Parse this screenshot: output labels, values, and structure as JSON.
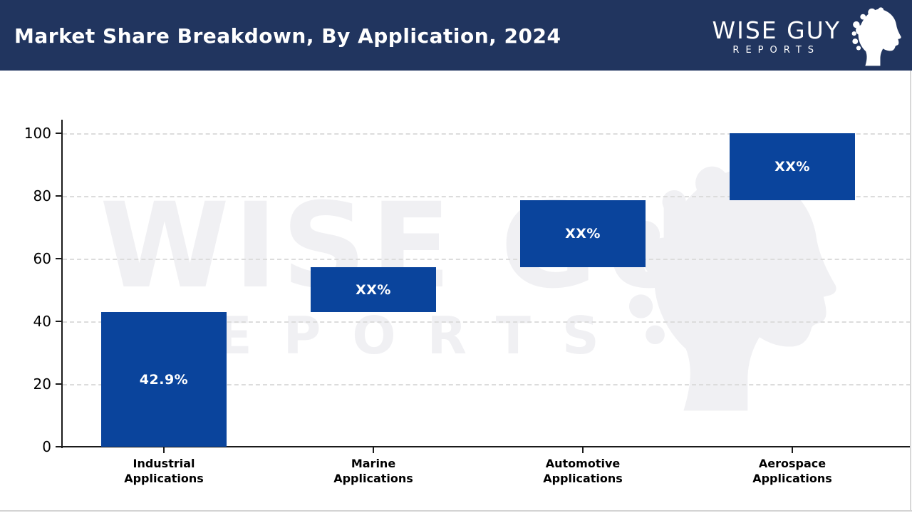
{
  "header": {
    "title": "Market Share Breakdown, By Application, 2024",
    "logo": {
      "line1": "WISE GUY",
      "line2": "REPORTS"
    }
  },
  "watermark": {
    "line1": "WISE GUY",
    "line2": "REPORTS"
  },
  "colors": {
    "header_bg": "#21355f",
    "bar": "#0a449c",
    "axis": "#1a1a1a",
    "gridline": "#dcdcdc",
    "bar_label_text": "#ffffff",
    "watermark": "#f0f0f3"
  },
  "chart_data": {
    "type": "bar",
    "subtype": "waterfall-breakdown",
    "title": "Market Share Breakdown, By Application, 2024",
    "xlabel": "",
    "ylabel": "",
    "ylim": [
      0,
      100
    ],
    "yticks": [
      0,
      20,
      40,
      60,
      80,
      100
    ],
    "grid": "horizontal-dashed",
    "legend": "none",
    "categories": [
      "Industrial Applications",
      "Marine Applications",
      "Automotive Applications",
      "Aerospace Applications"
    ],
    "category_labels": [
      "Industrial\nApplications",
      "Marine\nApplications",
      "Automotive\nApplications",
      "Aerospace\nApplications"
    ],
    "bars": [
      {
        "category": "Industrial Applications",
        "start": 0,
        "end": 42.9,
        "size": 42.9,
        "label": "42.9%"
      },
      {
        "category": "Marine Applications",
        "start": 42.9,
        "end": 57.2,
        "size": 14.3,
        "label": "XX%"
      },
      {
        "category": "Automotive Applications",
        "start": 57.2,
        "end": 78.6,
        "size": 21.4,
        "label": "XX%"
      },
      {
        "category": "Aerospace Applications",
        "start": 78.6,
        "end": 100.0,
        "size": 21.4,
        "label": "XX%"
      }
    ]
  }
}
